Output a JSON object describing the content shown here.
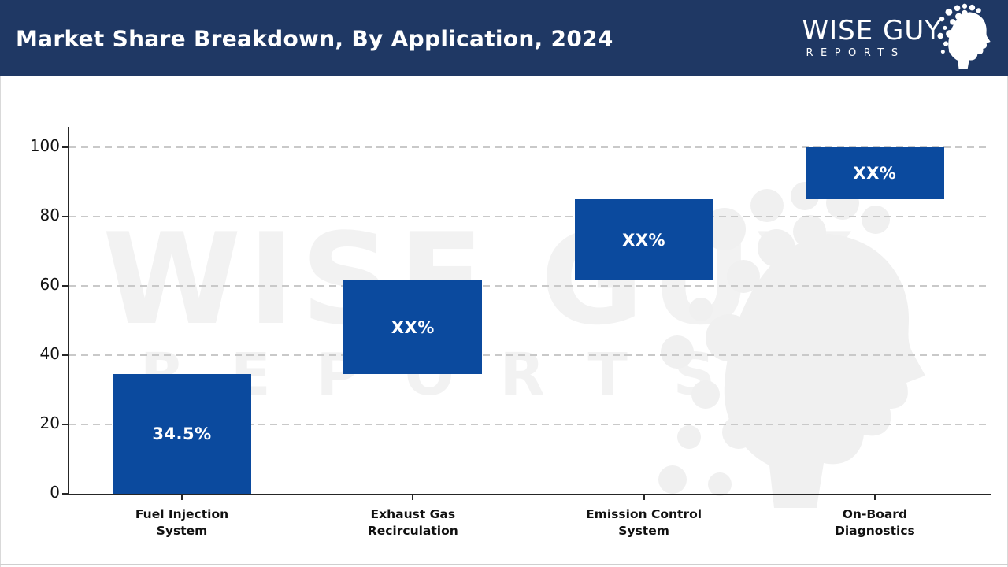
{
  "header": {
    "title": "Market Share Breakdown, By Application, 2024",
    "logo": {
      "primary": "WISE GUY",
      "secondary": "REPORTS"
    }
  },
  "watermark": {
    "primary": "WISE GUY",
    "secondary": "REPORTS"
  },
  "chart_data": {
    "type": "bar",
    "subtype": "waterfall",
    "title": "Market Share Breakdown, By Application, 2024",
    "categories": [
      [
        "Fuel Injection",
        "System"
      ],
      [
        "Exhaust Gas",
        "Recirculation"
      ],
      [
        "Emission Control",
        "System"
      ],
      [
        "On-Board",
        "Diagnostics"
      ]
    ],
    "segments": [
      {
        "name": "Fuel Injection System",
        "start": 0,
        "end": 34.5,
        "label": "34.5%"
      },
      {
        "name": "Exhaust Gas Recirculation",
        "start": 34.5,
        "end": 61.5,
        "label": "XX%"
      },
      {
        "name": "Emission Control System",
        "start": 61.5,
        "end": 85,
        "label": "XX%"
      },
      {
        "name": "On-Board Diagnostics",
        "start": 85,
        "end": 100,
        "label": "XX%"
      }
    ],
    "yticks": [
      0,
      20,
      40,
      60,
      80,
      100
    ],
    "ylim": [
      0,
      105
    ],
    "xlabel": "",
    "ylabel": "",
    "grid": "horizontal-dashed",
    "legend": "none",
    "bar_color": "#0B4A9E",
    "label_color": "#FFFFFF",
    "header_color": "#1F3864"
  }
}
